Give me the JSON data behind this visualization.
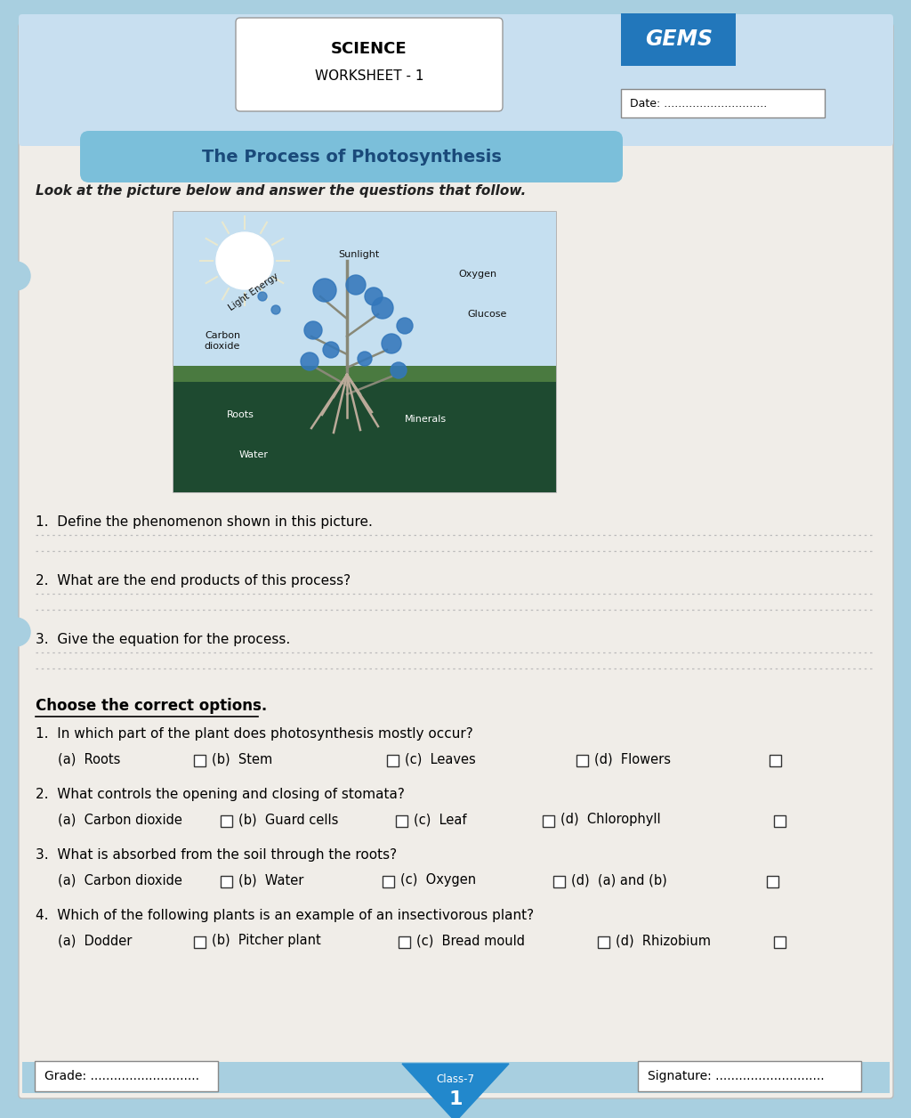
{
  "bg_color": "#a8cfe0",
  "paper_color": "#f0ede8",
  "title_main": "SCIENCE",
  "title_sub": "WORKSHEET - 1",
  "gems_text": "GEMS",
  "gems_bg": "#2277bb",
  "date_label": "Date: .............................",
  "topic_title": "The Process of Photosynthesis",
  "topic_bg": "#7bbfda",
  "instruction": "Look at the picture below and answer the questions that follow.",
  "open_questions": [
    {
      "num": "1.",
      "text": "  Define the phenomenon shown in this picture."
    },
    {
      "num": "2.",
      "text": "  What are the end products of this process?"
    },
    {
      "num": "3.",
      "text": "  Give the equation for the process."
    }
  ],
  "section_header": "Choose the correct options.",
  "mcq_questions": [
    {
      "num": "1.",
      "text": "  In which part of the plant does photosynthesis mostly occur?",
      "options": [
        "(a)  Roots",
        "(b)  Stem",
        "(c)  Leaves",
        "(d)  Flowers"
      ],
      "cb_before": [
        false,
        true,
        true,
        true,
        true
      ]
    },
    {
      "num": "2.",
      "text": "  What controls the opening and closing of stomata?",
      "options": [
        "(a)  Carbon dioxide",
        "(b)  Guard cells",
        "(c)  Leaf",
        "(d)  Chlorophyll"
      ],
      "cb_before": [
        false,
        true,
        false,
        true,
        false,
        true,
        false,
        true
      ]
    },
    {
      "num": "3.",
      "text": "  What is absorbed from the soil through the roots?",
      "options": [
        "(a)  Carbon dioxide",
        "(b)  Water",
        "(c)  Oxygen",
        "(d)  (a) and (b)"
      ],
      "cb_before": [
        false,
        true,
        false,
        true,
        false,
        true,
        false,
        true
      ]
    },
    {
      "num": "4.",
      "text": "  Which of the following plants is an example of an insectivorous plant?",
      "options": [
        "(a)  Dodder",
        "(b)  Pitcher plant",
        "(c)  Bread mould",
        "(d)  Rhizobium"
      ],
      "cb_before": [
        false,
        true,
        false,
        true,
        false,
        true,
        false,
        true
      ]
    }
  ],
  "grade_label": "Grade: ............................",
  "class_label": "Class-7",
  "page_num": "1",
  "page_bg": "#2288cc",
  "signature_label": "Signature: ............................",
  "diagram_labels": {
    "sunlight": "Sunlight",
    "light_energy": "Light Energy",
    "carbon_dioxide": "Carbon\ndioxide",
    "oxygen": "Oxygen",
    "glucose": "Glucose",
    "roots": "Roots",
    "water": "Water",
    "minerals": "Minerals"
  }
}
